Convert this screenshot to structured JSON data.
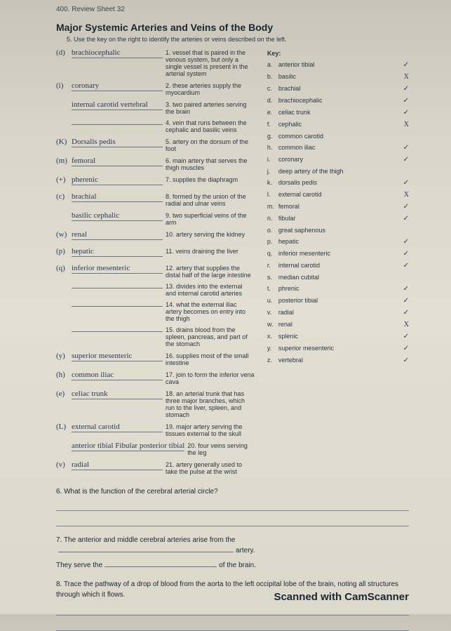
{
  "header": "400.    Review Sheet 32",
  "title": "Major Systemic Arteries and Veins of the Body",
  "instruction": "5. Use the key on the right to identify the arteries or veins described on the left.",
  "questions": [
    {
      "paren": "(d)",
      "written": "brachiocephalic",
      "text": "vessel that is paired in the venous system, but only a single vessel is present in the arterial system",
      "num": "1."
    },
    {
      "paren": "(i)",
      "written": "coronary",
      "text": "these arteries supply the myocardium",
      "num": "2."
    },
    {
      "paren": "",
      "written": "internal carotid   vertebral",
      "text": "two paired arteries serving the brain",
      "num": "3."
    },
    {
      "paren": "",
      "written": "",
      "text": "vein that runs between the cephalic and basilic veins",
      "num": "4."
    },
    {
      "paren": "(K)",
      "written": "Dorsalis pedis",
      "text": "artery on the dorsum of the foot",
      "num": "5."
    },
    {
      "paren": "(m)",
      "written": "femoral",
      "text": "main artery that serves the thigh muscles",
      "num": "6."
    },
    {
      "paren": "(+)",
      "written": "pherenic",
      "text": "supplies the diaphragm",
      "num": "7."
    },
    {
      "paren": "(c)",
      "written": "brachial",
      "text": "formed by the union of the radial and ulnar veins",
      "num": "8."
    },
    {
      "paren": "",
      "written": "basilic      cephalic",
      "text": "two superficial veins of the arm",
      "num": "9."
    },
    {
      "paren": "(w)",
      "written": "renal",
      "text": "artery serving the kidney",
      "num": "10."
    },
    {
      "paren": "(p)",
      "written": "hepatic",
      "text": "veins draining the liver",
      "num": "11."
    },
    {
      "paren": "(q)",
      "written": "inferior mesenteric",
      "text": "artery that supplies the distal half of the large intestine",
      "num": "12."
    },
    {
      "paren": "",
      "written": "",
      "text": "divides into the external and internal carotid arteries",
      "num": "13."
    },
    {
      "paren": "",
      "written": "",
      "text": "what the external iliac artery becomes on entry into the thigh",
      "num": "14."
    },
    {
      "paren": "",
      "written": "",
      "text": "drains blood from the spleen, pancreas, and part of the stomach",
      "num": "15."
    },
    {
      "paren": "(y)",
      "written": "superior mesenteric",
      "text": "supplies most of the small intestine",
      "num": "16."
    },
    {
      "paren": "(h)",
      "written": "common iliac",
      "text": "join to form the inferior vena cava",
      "num": "17."
    },
    {
      "paren": "(e)",
      "written": "celiac trunk",
      "text": "an arterial trunk that has three major branches, which run to the liver, spleen, and stomach",
      "num": "18."
    },
    {
      "paren": "(L)",
      "written": "external carotid",
      "text": "major artery serving the tissues external to the skull",
      "num": "19."
    },
    {
      "paren": "",
      "written": "anterior tibial  Fibular   posterior tibial",
      "text": "four veins serving the leg",
      "num": "20."
    },
    {
      "paren": "(v)",
      "written": "radial",
      "text": "artery generally used to take the pulse at the wrist",
      "num": "21."
    }
  ],
  "keyLabel": "Key:",
  "keys": [
    {
      "l": "a.",
      "t": "anterior tibial",
      "m": "✓"
    },
    {
      "l": "b.",
      "t": "basilic",
      "m": "X"
    },
    {
      "l": "c.",
      "t": "brachial",
      "m": "✓"
    },
    {
      "l": "d.",
      "t": "brachiocephalic",
      "m": "✓"
    },
    {
      "l": "e.",
      "t": "celiac trunk",
      "m": "✓"
    },
    {
      "l": "f.",
      "t": "cephalic",
      "m": "X"
    },
    {
      "l": "g.",
      "t": "common carotid",
      "m": ""
    },
    {
      "l": "h.",
      "t": "common iliac",
      "m": "✓"
    },
    {
      "l": "i.",
      "t": "coronary",
      "m": "✓"
    },
    {
      "l": "j.",
      "t": "deep artery of the thigh",
      "m": ""
    },
    {
      "l": "k.",
      "t": "dorsalis pedis",
      "m": "✓"
    },
    {
      "l": "l.",
      "t": "external carotid",
      "m": "X"
    },
    {
      "l": "m.",
      "t": "femoral",
      "m": "✓"
    },
    {
      "l": "n.",
      "t": "fibular",
      "m": "✓"
    },
    {
      "l": "o.",
      "t": "great saphenous",
      "m": ""
    },
    {
      "l": "p.",
      "t": "hepatic",
      "m": "✓"
    },
    {
      "l": "q.",
      "t": "inferior mesenteric",
      "m": "✓"
    },
    {
      "l": "r.",
      "t": "internal carotid",
      "m": "✓"
    },
    {
      "l": "s.",
      "t": "median cubital",
      "m": ""
    },
    {
      "l": "t.",
      "t": "phrenic",
      "m": "✓"
    },
    {
      "l": "u.",
      "t": "posterior tibial",
      "m": "✓"
    },
    {
      "l": "v.",
      "t": "radial",
      "m": "✓"
    },
    {
      "l": "w.",
      "t": "renal",
      "m": "X"
    },
    {
      "l": "x.",
      "t": "splenic",
      "m": "✓"
    },
    {
      "l": "y.",
      "t": "superior mesenteric",
      "m": "✓"
    },
    {
      "l": "z.",
      "t": "vertebral",
      "m": "✓"
    }
  ],
  "q6": "6. What is the function of the cerebral arterial circle?",
  "q7a": "7. The anterior and middle cerebral arteries arise from the",
  "q7a_end": "artery.",
  "q7b": "They serve the",
  "q7b_end": "of the brain.",
  "q8": "8. Trace the pathway of a drop of blood from the aorta to the left occipital lobe of the brain, noting all structures through which it flows.",
  "footer": "Scanned with CamScanner"
}
